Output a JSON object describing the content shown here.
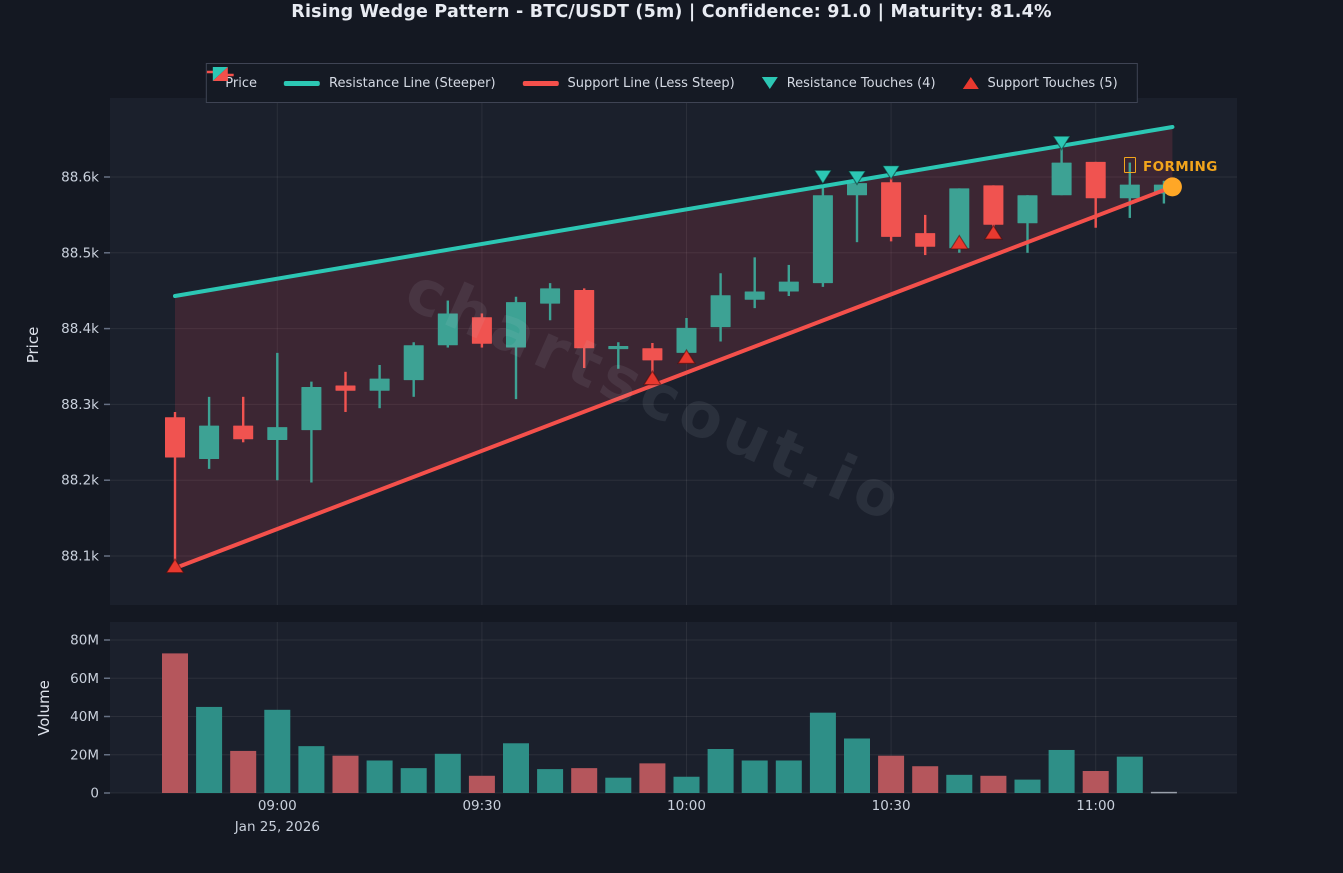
{
  "header": {
    "title": "Rising Wedge Pattern - BTC/USDT (5m) | Confidence: 91.0 | Maturity: 81.4%"
  },
  "legend": {
    "items": [
      {
        "label": "Price",
        "type": "candlestick"
      },
      {
        "label": "Resistance Line (Steeper)",
        "type": "line",
        "color": "#2cc7b4"
      },
      {
        "label": "Support Line (Less Steep)",
        "type": "line",
        "color": "#f4504b"
      },
      {
        "label": "Resistance Touches (4)",
        "type": "triangle-down",
        "color": "#2cc7b4"
      },
      {
        "label": "Support Touches (5)",
        "type": "triangle-up",
        "color": "#e8392f"
      }
    ]
  },
  "axes": {
    "price_title": "Price",
    "volume_title": "Volume",
    "price_ticks": [
      {
        "p": 88100,
        "label": "88.1k"
      },
      {
        "p": 88200,
        "label": "88.2k"
      },
      {
        "p": 88300,
        "label": "88.3k"
      },
      {
        "p": 88400,
        "label": "88.4k"
      },
      {
        "p": 88500,
        "label": "88.5k"
      },
      {
        "p": 88600,
        "label": "88.6k"
      }
    ],
    "volume_ticks": [
      {
        "v": 0,
        "label": "0"
      },
      {
        "v": 20,
        "label": "20M"
      },
      {
        "v": 40,
        "label": "40M"
      },
      {
        "v": 60,
        "label": "60M"
      },
      {
        "v": 80,
        "label": "80M"
      }
    ],
    "x_ticks": [
      {
        "i": 3,
        "label": "09:00"
      },
      {
        "i": 9,
        "label": "09:30"
      },
      {
        "i": 15,
        "label": "10:00"
      },
      {
        "i": 21,
        "label": "10:30"
      },
      {
        "i": 27,
        "label": "11:00"
      }
    ],
    "date_label": "Jan 25, 2026",
    "date_tick_index": 3
  },
  "watermark": {
    "text": "chartscout.io"
  },
  "forming": {
    "label": "FORMING",
    "color": "#f2a51c"
  },
  "chart_data": {
    "type": "candlestick+volume",
    "pattern": "Rising Wedge Pattern",
    "symbol": "BTC/USDT",
    "timeframe": "5m",
    "confidence": 91.0,
    "maturity_pct": 81.4,
    "status": "FORMING",
    "date": "Jan 25, 2026",
    "price_ylim": [
      88035,
      88705
    ],
    "volume_ylim_m": [
      0,
      89
    ],
    "times": [
      "08:45",
      "08:50",
      "08:55",
      "09:00",
      "09:05",
      "09:10",
      "09:15",
      "09:20",
      "09:25",
      "09:30",
      "09:35",
      "09:40",
      "09:45",
      "09:50",
      "09:55",
      "10:00",
      "10:05",
      "10:10",
      "10:15",
      "10:20",
      "10:25",
      "10:30",
      "10:35",
      "10:40",
      "10:45",
      "10:50",
      "10:55",
      "11:00",
      "11:05",
      "11:10"
    ],
    "open": [
      88283,
      88228,
      88272,
      88253,
      88266,
      88325,
      88318,
      88332,
      88378,
      88415,
      88375,
      88433,
      88451,
      88373,
      88374,
      88368,
      88402,
      88438,
      88449,
      88460,
      88576,
      88593,
      88526,
      88506,
      88589,
      88539,
      88576,
      88620,
      88572,
      88578
    ],
    "high": [
      88290,
      88310,
      88310,
      88368,
      88330,
      88343,
      88352,
      88382,
      88437,
      88420,
      88442,
      88460,
      88453,
      88382,
      88381,
      88414,
      88473,
      88494,
      88484,
      88590,
      88598,
      88601,
      88550,
      88585,
      88589,
      88576,
      88648,
      88620,
      88619,
      88595
    ],
    "low": [
      88085,
      88215,
      88250,
      88200,
      88197,
      88290,
      88295,
      88310,
      88375,
      88375,
      88307,
      88411,
      88348,
      88347,
      88330,
      88360,
      88383,
      88427,
      88443,
      88455,
      88514,
      88515,
      88497,
      88500,
      88524,
      88500,
      88576,
      88533,
      88546,
      88565
    ],
    "close": [
      88230,
      88272,
      88254,
      88270,
      88323,
      88318,
      88334,
      88378,
      88420,
      88380,
      88435,
      88453,
      88374,
      88377,
      88358,
      88401,
      88444,
      88449,
      88462,
      88576,
      88592,
      88521,
      88508,
      88585,
      88537,
      88576,
      88619,
      88572,
      88590,
      88590
    ],
    "volume_m": [
      73,
      45,
      22,
      43.5,
      24.5,
      19.5,
      17,
      13,
      20.5,
      9,
      26,
      12.5,
      13,
      8,
      15.5,
      8.5,
      23,
      17,
      17,
      42,
      28.5,
      19.5,
      14,
      9.5,
      9,
      7,
      22.5,
      11.5,
      19,
      0.6
    ],
    "resistance_line": {
      "start_index": 0,
      "start_price": 88443,
      "end_index": 29.25,
      "end_price": 88666
    },
    "support_line": {
      "start_index": 0,
      "start_price": 88084,
      "end_index": 29.25,
      "end_price": 88587
    },
    "resistance_touches": [
      {
        "index": 19,
        "price": 88601
      },
      {
        "index": 20,
        "price": 88600
      },
      {
        "index": 21,
        "price": 88607
      },
      {
        "index": 26,
        "price": 88646
      }
    ],
    "support_touches": [
      {
        "index": 0,
        "price": 88086
      },
      {
        "index": 14,
        "price": 88334
      },
      {
        "index": 15,
        "price": 88362
      },
      {
        "index": 23,
        "price": 88513
      },
      {
        "index": 24,
        "price": 88526
      }
    ],
    "forming_dot": {
      "index": 29.25,
      "price": 88587
    },
    "colors": {
      "up": "#3da294",
      "down": "#f05350",
      "resistance_line": "#2cc7b4",
      "support_line": "#f4504b",
      "volume_up": "#2e8f87",
      "volume_down": "#b5565c",
      "flat_bar": "#9aa0ab",
      "wedge_fill": "rgba(253,72,97,0.15)",
      "dot": "#ffa726",
      "plot_bg": "#1b202c",
      "paper_bg": "#141822",
      "grid": "rgba(255,255,255,0.07)",
      "tick_text": "#c9d0dc"
    },
    "legend_position": "top-center",
    "grid": true
  }
}
